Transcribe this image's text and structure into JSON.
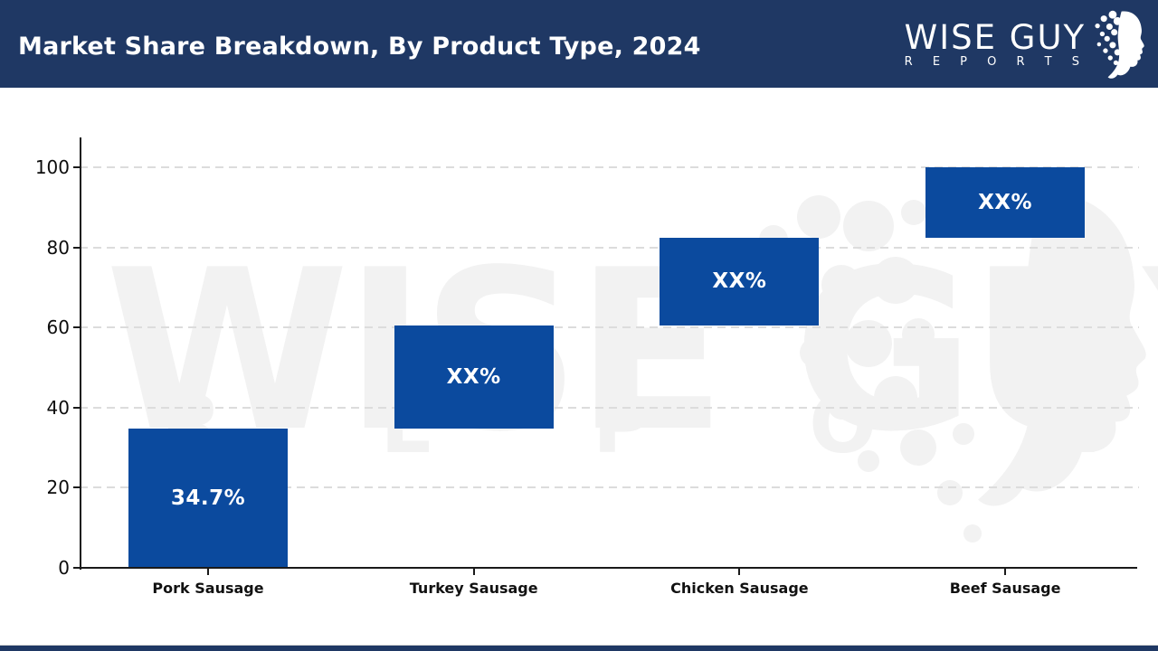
{
  "header": {
    "title": "Market Share Breakdown, By Product Type, 2024",
    "bg_color": "#1f3864",
    "logo": {
      "line1": "WISE GUY",
      "line2": "R E P O R T S"
    }
  },
  "watermark": {
    "line1": "WISE GUY",
    "line2": "R E P O R T S"
  },
  "chart_data": {
    "type": "bar",
    "subtype": "waterfall",
    "title": "Market Share Breakdown, By Product Type, 2024",
    "categories": [
      "Pork Sausage",
      "Turkey Sausage",
      "Chicken Sausage",
      "Beef Sausage"
    ],
    "segments": [
      {
        "category": "Pork Sausage",
        "start": 0,
        "end": 34.7,
        "label": "34.7%"
      },
      {
        "category": "Turkey Sausage",
        "start": 34.7,
        "end": 60.5,
        "label": "XX%"
      },
      {
        "category": "Chicken Sausage",
        "start": 60.5,
        "end": 82.4,
        "label": "XX%"
      },
      {
        "category": "Beef Sausage",
        "start": 82.4,
        "end": 100,
        "label": "XX%"
      }
    ],
    "y_ticks": [
      0,
      20,
      40,
      60,
      80,
      100
    ],
    "ylim": [
      0,
      107
    ],
    "xlabel": "",
    "ylabel": "",
    "grid": "horizontal-dashed",
    "legend": "none",
    "bar_color": "#0b4a9e",
    "value_label_color": "#ffffff"
  }
}
